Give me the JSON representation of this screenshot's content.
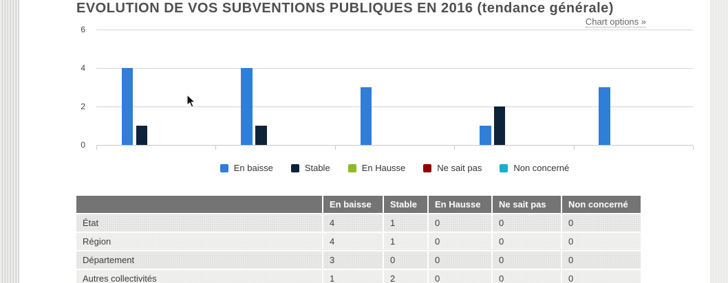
{
  "header": {
    "title": "EVOLUTION DE VOS SUBVENTIONS PUBLIQUES EN 2016 (tendance générale)",
    "chart_options_label": "Chart options »"
  },
  "chart_data": {
    "type": "bar",
    "title": "EVOLUTION DE VOS SUBVENTIONS PUBLIQUES EN 2016 (tendance générale)",
    "categories": [
      "État",
      "Région",
      "Département",
      "Autres collectivités",
      ""
    ],
    "series": [
      {
        "name": "En baisse",
        "color": "#2f7ed8",
        "values": [
          4,
          4,
          3,
          1,
          3
        ]
      },
      {
        "name": "Stable",
        "color": "#0d233a",
        "values": [
          1,
          1,
          0,
          2,
          0
        ]
      },
      {
        "name": "En Hausse",
        "color": "#8bbc21",
        "values": [
          0,
          0,
          0,
          0,
          0
        ]
      },
      {
        "name": "Ne sait pas",
        "color": "#910000",
        "values": [
          0,
          0,
          0,
          0,
          0
        ]
      },
      {
        "name": "Non concerné",
        "color": "#1aadce",
        "values": [
          0,
          0,
          0,
          0,
          0
        ]
      }
    ],
    "xlabel": "",
    "ylabel": "",
    "ylim": [
      0,
      6
    ],
    "yticks": [
      0,
      2,
      4,
      6
    ],
    "grid": true,
    "legend_position": "bottom"
  },
  "table": {
    "columns": [
      "",
      "En baisse",
      "Stable",
      "En Hausse",
      "Ne sait pas",
      "Non concerné"
    ],
    "rows": [
      {
        "label": "État",
        "values": [
          4,
          1,
          0,
          0,
          0
        ]
      },
      {
        "label": "Région",
        "values": [
          4,
          1,
          0,
          0,
          0
        ]
      },
      {
        "label": "Département",
        "values": [
          3,
          0,
          0,
          0,
          0
        ]
      },
      {
        "label": "Autres collectivités",
        "values": [
          1,
          2,
          0,
          0,
          0
        ]
      }
    ]
  }
}
